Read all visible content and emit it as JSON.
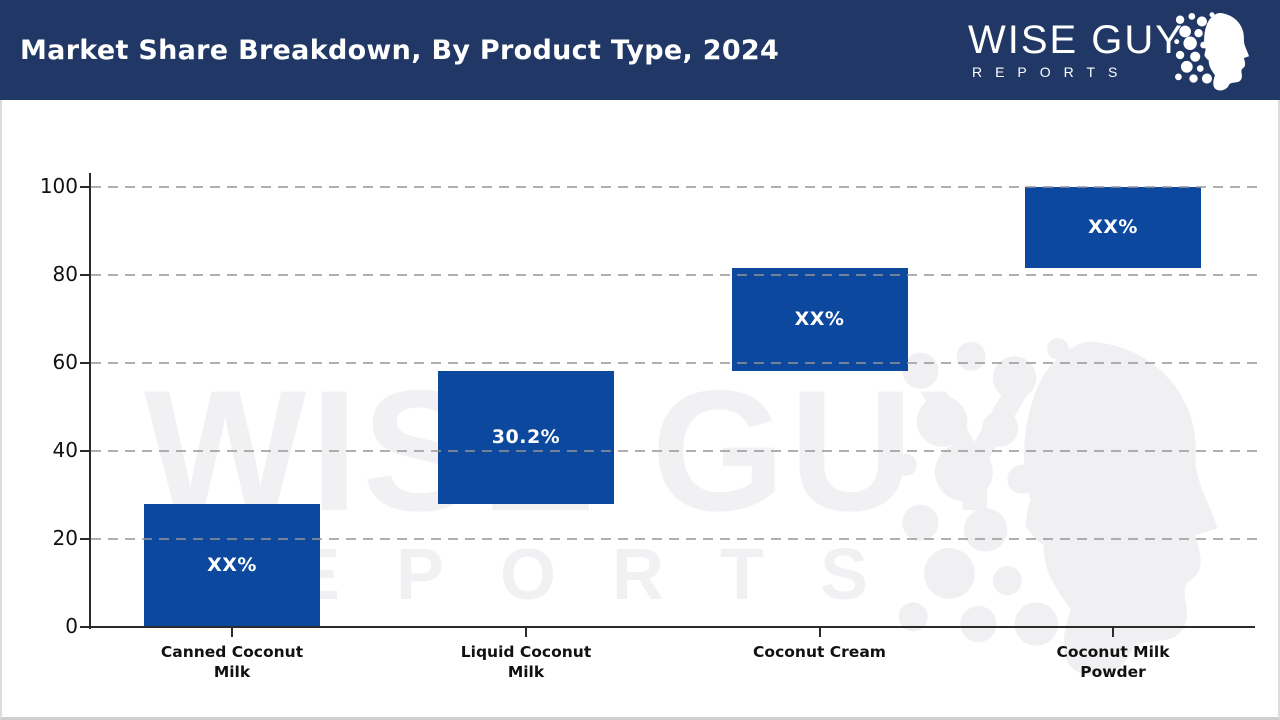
{
  "header": {
    "title": "Market Share Breakdown, By Product Type, 2024",
    "logo": {
      "wordmark": "WISE GUY",
      "subtext": "REPORTS",
      "icon": "dotted-face-profile"
    }
  },
  "watermark": {
    "wordmark": "WISE GUY",
    "subtext": "REPORTS",
    "icon": "dotted-face-profile"
  },
  "chart_data": {
    "type": "bar",
    "variant": "waterfall",
    "title": "Market Share Breakdown, By Product Type, 2024",
    "categories": [
      "Canned Coconut\nMilk",
      "Liquid Coconut\nMilk",
      "Coconut Cream",
      "Coconut Milk\nPowder"
    ],
    "series": [
      {
        "name": "Market Share (%)",
        "segments": [
          {
            "category": "Canned Coconut Milk",
            "start": 0,
            "end": 28,
            "value_est": 28,
            "value_label": "XX%"
          },
          {
            "category": "Liquid Coconut Milk",
            "start": 28,
            "end": 58.2,
            "value_est": 30.2,
            "value_label": "30.2%"
          },
          {
            "category": "Coconut Cream",
            "start": 58.2,
            "end": 81.6,
            "value_est": 23.4,
            "value_label": "XX%"
          },
          {
            "category": "Coconut Milk Powder",
            "start": 81.6,
            "end": 100,
            "value_est": 18.4,
            "value_label": "XX%"
          }
        ]
      }
    ],
    "yticks": [
      0,
      20,
      40,
      60,
      80,
      100
    ],
    "ylim": [
      0,
      103
    ],
    "xlabel": "",
    "ylabel": "",
    "grid": "horizontal-dashed",
    "legend": "none",
    "bar_color": "#0B489E",
    "bar_label_color": "#FFFFFF"
  },
  "colors": {
    "header_bg": "#213866",
    "header_text": "#FFFFFF",
    "watermark": "#F1F1F4",
    "grid": "#C9C9C9",
    "axis": "#2B2B2B",
    "tick_text": "#111111",
    "page_bg": "#FFFFFF",
    "border": "#D7D7D7"
  }
}
